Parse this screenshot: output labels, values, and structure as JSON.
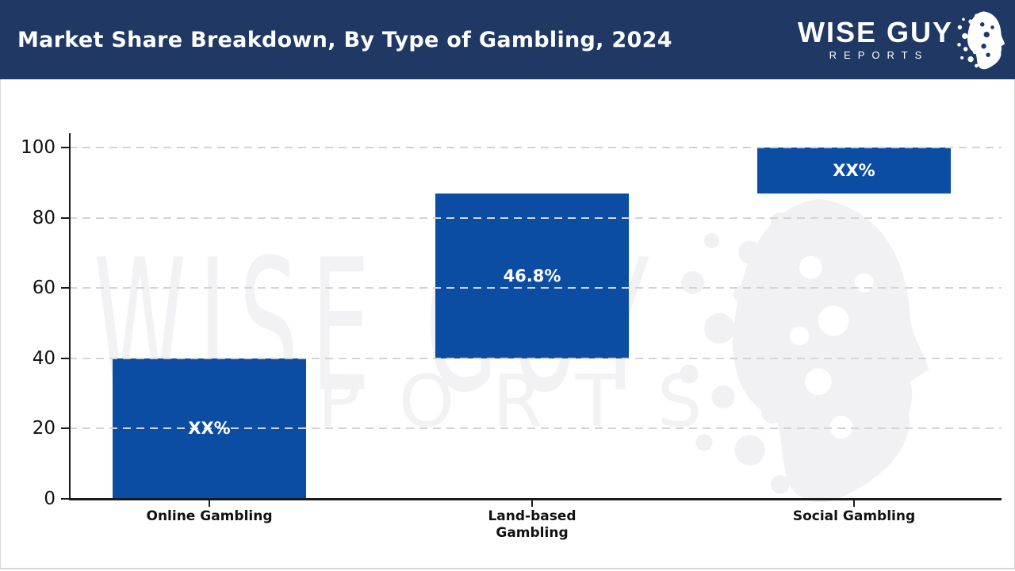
{
  "header": {
    "title": "Market Share Breakdown, By Type of Gambling, 2024",
    "bg_color": "#203864",
    "logo": {
      "line1": "WISE GUY",
      "line2": "REPORTS",
      "head_icon": "dotted-head-profile-icon"
    }
  },
  "watermark": {
    "line1": "WISE GUY",
    "line2": "REPORTS",
    "head_icon": "dotted-head-profile-watermark"
  },
  "chart_data": {
    "type": "bar",
    "subtype": "waterfall",
    "title": "Market Share Breakdown, By Type of Gambling, 2024",
    "categories": [
      "Online Gambling",
      "Land-based Gambling",
      "Social Gambling"
    ],
    "category_display_lines": [
      [
        "Online Gambling"
      ],
      [
        "Land-based",
        "Gambling"
      ],
      [
        "Social Gambling"
      ]
    ],
    "segments": [
      {
        "category": "Online Gambling",
        "start": 0,
        "end": 40,
        "value_label": "XX%"
      },
      {
        "category": "Land-based Gambling",
        "start": 40,
        "end": 86.8,
        "value_label": "46.8%"
      },
      {
        "category": "Social Gambling",
        "start": 86.8,
        "end": 100,
        "value_label": "XX%"
      }
    ],
    "xlabel": "",
    "ylabel": "",
    "ylim": [
      0,
      100
    ],
    "yticks": [
      0,
      20,
      40,
      60,
      80,
      100
    ],
    "grid": "horizontal-dashed",
    "legend": "none",
    "bar_color": "#0b4da2",
    "bar_label_color": "#ffffff",
    "gridline_color": "#d4d4d4",
    "axis_color": "#1a1a1a"
  }
}
